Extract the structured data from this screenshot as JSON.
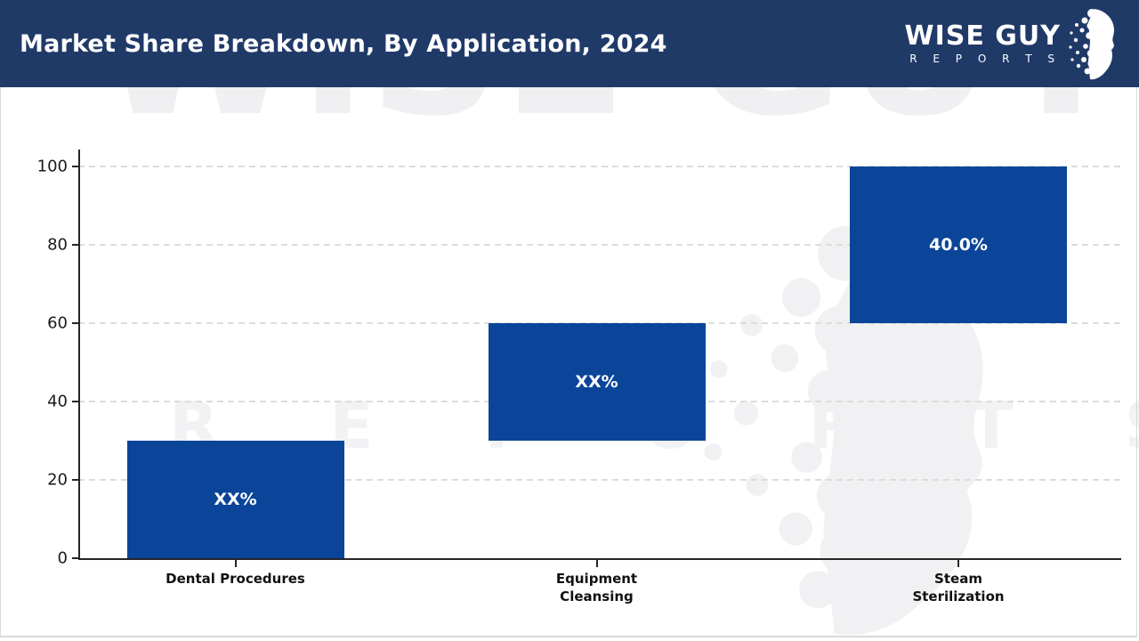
{
  "colors": {
    "header_bg": "#203a68",
    "title_text": "#ffffff",
    "bar": "#0b4599",
    "bar_label": "#ffffff",
    "grid": "#dcdcdc",
    "axis": "#262626",
    "tick_label": "#1a1a1a",
    "watermark": "#f0f0f2",
    "frame_border": "#d9d9d9"
  },
  "header": {
    "title": "Market Share Breakdown, By Application, 2024",
    "logo": {
      "line1": "WISE GUY",
      "line2": "R E P O R T S"
    }
  },
  "watermark": {
    "line1": "WISE GUY",
    "line2": "R E P O R T S"
  },
  "chart_data": {
    "type": "bar",
    "subtype": "waterfall-stacked-market-share",
    "title": "Market Share Breakdown, By Application, 2024",
    "categories": [
      [
        "Dental Procedures"
      ],
      [
        "Equipment",
        "Cleansing"
      ],
      [
        "Steam",
        "Sterilization"
      ]
    ],
    "segments": [
      {
        "category": "Dental Procedures",
        "start": 0,
        "end": 30,
        "label": "XX%"
      },
      {
        "category": "Equipment Cleansing",
        "start": 30,
        "end": 60,
        "label": "XX%"
      },
      {
        "category": "Steam Sterilization",
        "start": 60,
        "end": 100,
        "label": "40.0%"
      }
    ],
    "xlabel": "",
    "ylabel": "",
    "ylim": [
      0,
      100
    ],
    "yticks": [
      0,
      20,
      40,
      60,
      80,
      100
    ],
    "grid": "horizontal-dashed",
    "legend": "none"
  }
}
